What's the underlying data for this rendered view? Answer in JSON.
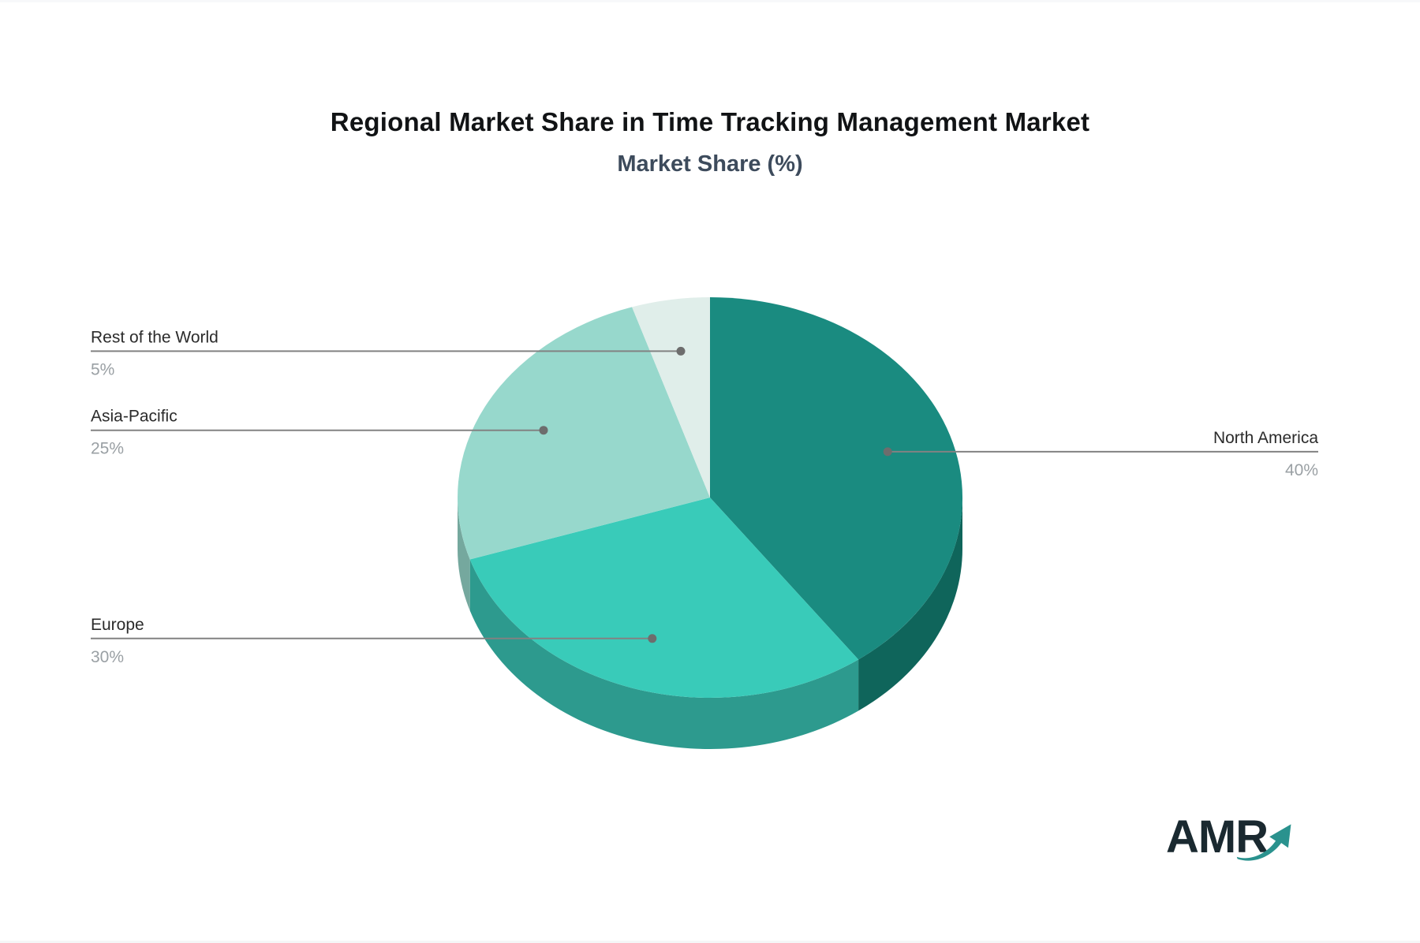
{
  "header": {
    "title": "Regional Market Share in Time Tracking Management Market",
    "subtitle": "Market Share (%)"
  },
  "chart_data": {
    "type": "pie",
    "title": "Regional Market Share in Time Tracking Management Market",
    "subtitle": "Market Share (%)",
    "unit": "%",
    "direction": "clockwise",
    "start_at": "top",
    "legend_position": "none",
    "style": "3d-pie",
    "leader_line_color": "#828282",
    "leader_dot_color": "#6d6d6d",
    "label_color": "#2b2b2b",
    "value_color": "#9aa0a4",
    "slices": [
      {
        "label": "North America",
        "value": 40,
        "display": "40%",
        "color": "#1a8b80",
        "side_color": "#0f655b",
        "label_side": "right"
      },
      {
        "label": "Europe",
        "value": 30,
        "display": "30%",
        "color": "#39cbb9",
        "side_color": "#2d9a8e",
        "label_side": "left"
      },
      {
        "label": "Asia-Pacific",
        "value": 25,
        "display": "25%",
        "color": "#97d8cc",
        "side_color": "#75a89e",
        "label_side": "left"
      },
      {
        "label": "Rest of the World",
        "value": 5,
        "display": "5%",
        "color": "#e0eeea",
        "side_color": "#c3dcd6",
        "label_side": "left"
      }
    ]
  },
  "logo": {
    "text": "AMR",
    "text_color": "#1a2930",
    "arrow_color": "#2a928e"
  }
}
